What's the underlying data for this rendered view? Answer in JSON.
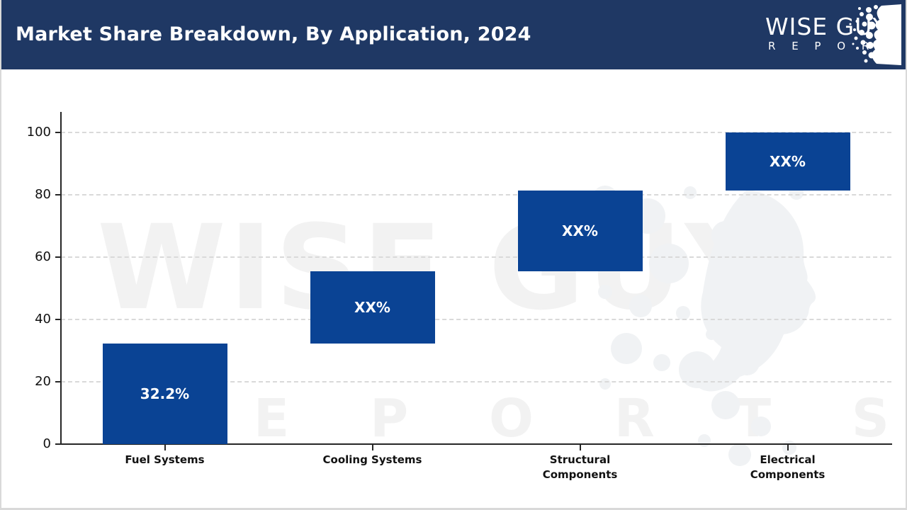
{
  "header": {
    "title": "Market Share Breakdown, By Application, 2024",
    "logo": {
      "wordmark": "WISE GUY",
      "sub": "R E P O R T S"
    }
  },
  "watermark": {
    "wordmark": "WISE GUY",
    "sub": "R E P O R T S"
  },
  "chart_data": {
    "type": "bar",
    "variant": "waterfall",
    "title": "Market Share Breakdown, By Application, 2024",
    "categories": [
      "Fuel Systems",
      "Cooling Systems",
      "Structural Components",
      "Electrical Components"
    ],
    "segments": [
      {
        "category": "Fuel Systems",
        "start": 0,
        "end": 32.2,
        "delta": 32.2,
        "label": "32.2%"
      },
      {
        "category": "Cooling Systems",
        "start": 32.2,
        "end": 55.4,
        "delta": 23.2,
        "label": "XX%"
      },
      {
        "category": "Structural Components",
        "start": 55.4,
        "end": 81.3,
        "delta": 25.9,
        "label": "XX%"
      },
      {
        "category": "Electrical Components",
        "start": 81.3,
        "end": 100,
        "delta": 18.7,
        "label": "XX%"
      }
    ],
    "yticks": [
      0,
      20,
      40,
      60,
      80,
      100
    ],
    "ylim": [
      0,
      106
    ],
    "xlabel": "",
    "ylabel": "",
    "grid": "horizontal-dashed",
    "legend": "none",
    "bar_color": "#0a4394",
    "bar_label_color": "#ffffff",
    "header_color": "#1f3864",
    "grid_color": "#d9d9d9",
    "axis_color": "#262626",
    "watermark_color": "#f2f2f2"
  }
}
